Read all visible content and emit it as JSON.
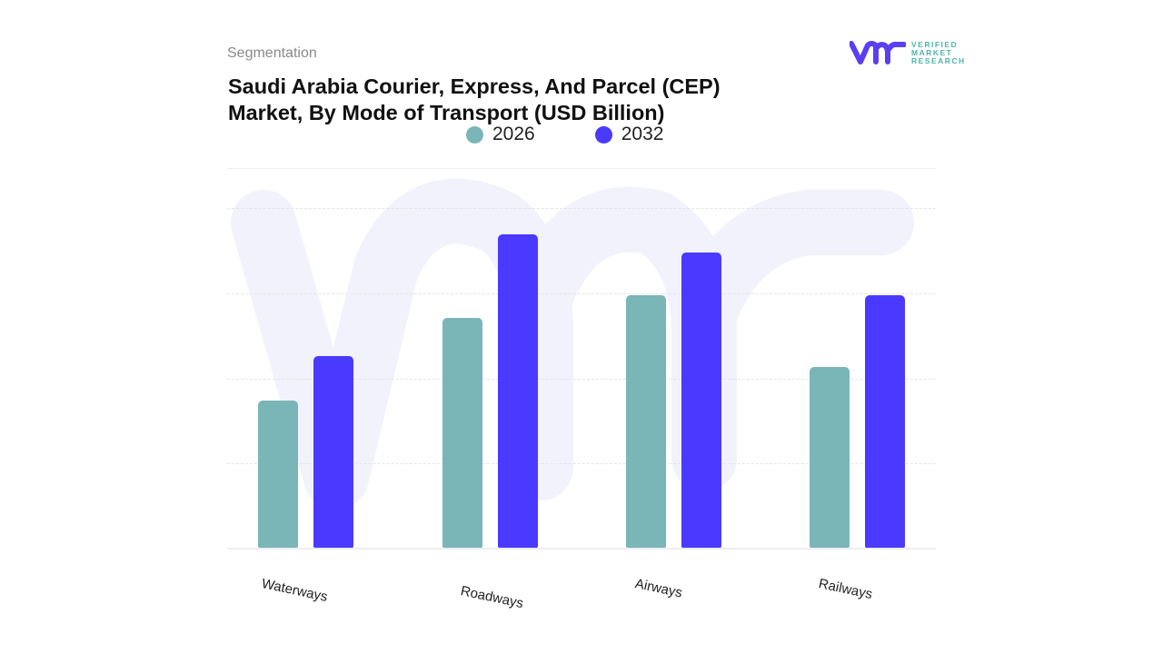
{
  "header": {
    "segmentation": "Segmentation",
    "title_line1": "Saudi Arabia Courier, Express, And Parcel (CEP)",
    "title_line2": "Market, By Mode of Transport (USD Billion)"
  },
  "logo": {
    "mark": "vmr",
    "line1": "VERIFIED",
    "line2": "MARKET",
    "line3": "RESEARCH",
    "brand_color": "#5a3ff0",
    "text_color": "#4fb3ad"
  },
  "legend": [
    {
      "label": "2026",
      "color": "#7ab5b8"
    },
    {
      "label": "2032",
      "color": "#4a3aff"
    }
  ],
  "chart_data": {
    "type": "bar",
    "title": "Saudi Arabia Courier, Express, And Parcel (CEP) Market, By Mode of Transport (USD Billion)",
    "xlabel": "",
    "ylabel": "USD Billion",
    "categories": [
      "Waterways",
      "Roadways",
      "Airways",
      "Railways"
    ],
    "series": [
      {
        "name": "2026",
        "color": "#7ab5b8",
        "values": [
          1.74,
          2.71,
          2.98,
          2.13
        ]
      },
      {
        "name": "2032",
        "color": "#4a3aff",
        "values": [
          2.26,
          3.69,
          3.48,
          2.98
        ]
      }
    ],
    "ylim": [
      0,
      4.5
    ],
    "gridlines": [
      1,
      2,
      3,
      4
    ],
    "grid": true,
    "legend_position": "top",
    "note": "No y-axis tick labels shown; values estimated relative to evenly spaced gridlines (1 unit per gridline)."
  }
}
